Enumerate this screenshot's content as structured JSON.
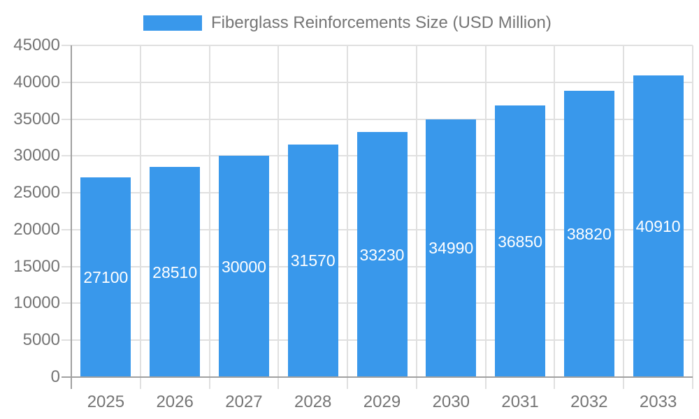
{
  "legend": {
    "label": "Fiberglass Reinforcements Size (USD Million)",
    "swatch_color": "#3998EB"
  },
  "chart_data": {
    "type": "bar",
    "title": "Fiberglass Reinforcements Size (USD Million)",
    "series_name": "Fiberglass Reinforcements Size (USD Million)",
    "categories": [
      "2025",
      "2026",
      "2027",
      "2028",
      "2029",
      "2030",
      "2031",
      "2032",
      "2033"
    ],
    "values": [
      27100,
      28510,
      30000,
      31570,
      33230,
      34990,
      36850,
      38820,
      40910
    ],
    "xlabel": "",
    "ylabel": "",
    "ylim": [
      0,
      45000
    ],
    "yticks": [
      0,
      5000,
      10000,
      15000,
      20000,
      25000,
      30000,
      35000,
      40000,
      45000
    ],
    "grid": true,
    "legend_position": "top",
    "value_labels_position": "inside-center",
    "colors": {
      "bar": "#3998EB",
      "grid": "#E0E0E0",
      "axis": "#A0A0A0",
      "tick_text": "#757575",
      "value_text": "#FFFFFF",
      "background": "#FFFFFF"
    }
  }
}
